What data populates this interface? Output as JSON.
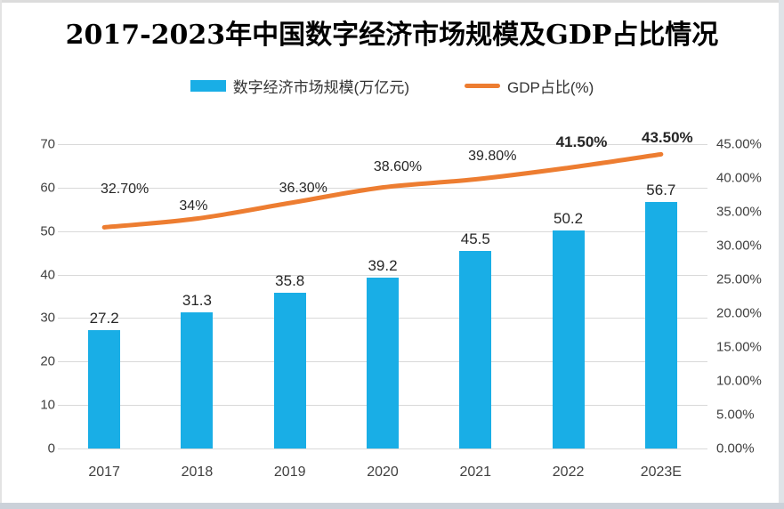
{
  "title": "2017-2023年中国数字经济市场规模及GDP占比情况",
  "legend": [
    {
      "label": "数字经济市场规模(万亿元)",
      "type": "bar"
    },
    {
      "label": "GDP占比(%)",
      "type": "line"
    }
  ],
  "colors": {
    "bar": "#19AEE6",
    "line": "#ED7D31",
    "gridline": "#D9D9D9"
  },
  "chart_data": {
    "type": "bar+line combo",
    "title": "2017-2023年中国数字经济市场规模及GDP占比情况",
    "categories": [
      "2017",
      "2018",
      "2019",
      "2020",
      "2021",
      "2022",
      "2023E"
    ],
    "series": [
      {
        "name": "数字经济市场规模(万亿元)",
        "type": "bar",
        "axis": "left",
        "values": [
          27.2,
          31.3,
          35.8,
          39.2,
          45.5,
          50.2,
          56.7
        ],
        "labels": [
          "27.2",
          "31.3",
          "35.8",
          "39.2",
          "45.5",
          "50.2",
          "56.7"
        ]
      },
      {
        "name": "GDP占比(%)",
        "type": "line",
        "axis": "right",
        "smooth": true,
        "values": [
          32.7,
          34,
          36.3,
          38.6,
          39.8,
          41.5,
          43.5
        ],
        "labels": [
          "32.70%",
          "34%",
          "36.30%",
          "38.60%",
          "39.80%",
          "41.50%",
          "43.50%"
        ],
        "bold_labels": [
          false,
          false,
          false,
          false,
          false,
          true,
          true
        ]
      }
    ],
    "left_axis": {
      "min": 0,
      "max": 70,
      "step": 10,
      "ticks": [
        "70",
        "60",
        "50",
        "40",
        "30",
        "20",
        "10",
        "0"
      ]
    },
    "right_axis": {
      "min": 0,
      "max": 45,
      "step": 5,
      "ticks": [
        "45.00%",
        "40.00%",
        "35.00%",
        "30.00%",
        "25.00%",
        "20.00%",
        "15.00%",
        "10.00%",
        "5.00%",
        "0.00%"
      ]
    },
    "grid": true,
    "legend_position": "top"
  }
}
